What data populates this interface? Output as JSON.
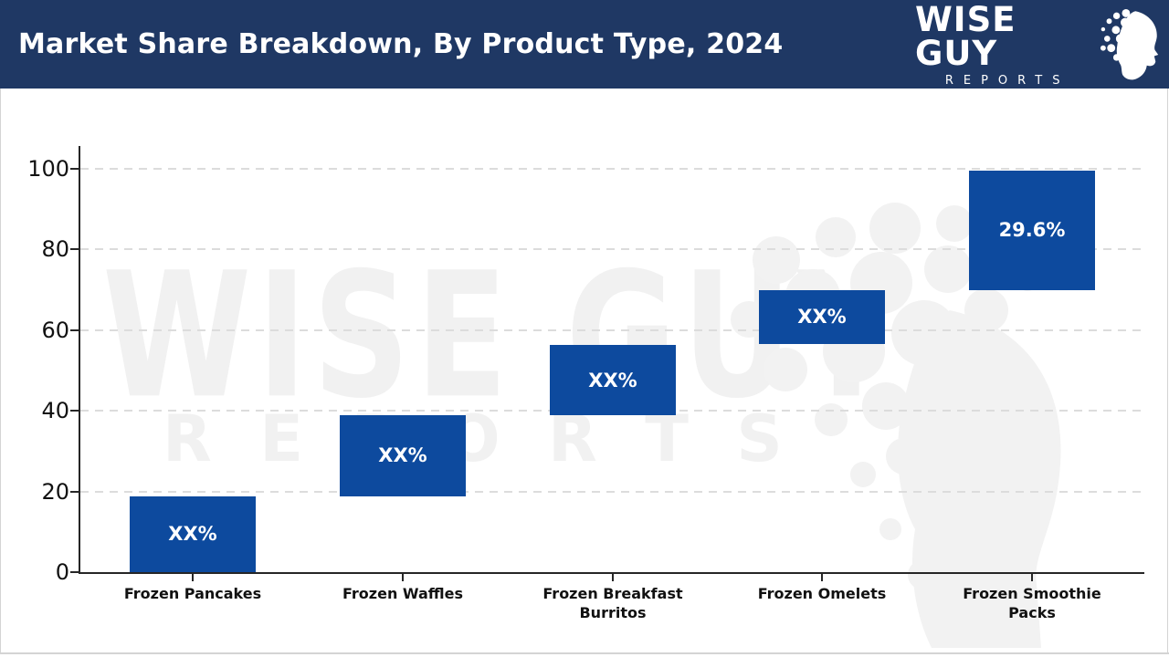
{
  "header": {
    "title": "Market Share Breakdown, By Product Type, 2024",
    "bg_color": "#1f3864",
    "logo": {
      "primary": "WISE GUY",
      "secondary": "REPORTS"
    }
  },
  "watermark": {
    "line1": "WISE GUY",
    "line2": "R E P O R T S"
  },
  "chart_data": {
    "type": "bar",
    "variant": "floating-waterfall-segments",
    "title": "Market Share Breakdown, By Product Type, 2024",
    "categories": [
      "Frozen Pancakes",
      "Frozen Waffles",
      "Frozen Breakfast Burritos",
      "Frozen Omelets",
      "Frozen Smoothie Packs"
    ],
    "segments": [
      {
        "category": "Frozen Pancakes",
        "start": 0,
        "end": 18.8,
        "label": "XX%"
      },
      {
        "category": "Frozen Waffles",
        "start": 18.8,
        "end": 38.9,
        "label": "XX%"
      },
      {
        "category": "Frozen Breakfast Burritos",
        "start": 38.9,
        "end": 56.3,
        "label": "XX%"
      },
      {
        "category": "Frozen Omelets",
        "start": 56.6,
        "end": 70.0,
        "label": "XX%"
      },
      {
        "category": "Frozen Smoothie Packs",
        "start": 70.0,
        "end": 99.6,
        "label": "29.6%"
      }
    ],
    "y_ticks": [
      0,
      20,
      40,
      60,
      80,
      100
    ],
    "ylim": [
      0,
      106
    ],
    "xlabel": "",
    "ylabel": "",
    "grid": "horizontal-dashed",
    "legend": "none",
    "bar_color": "#0d4a9e",
    "bar_label_color": "#ffffff",
    "axis_color": "#262626",
    "grid_color": "#dcdcdc",
    "text_color": "#111111"
  }
}
